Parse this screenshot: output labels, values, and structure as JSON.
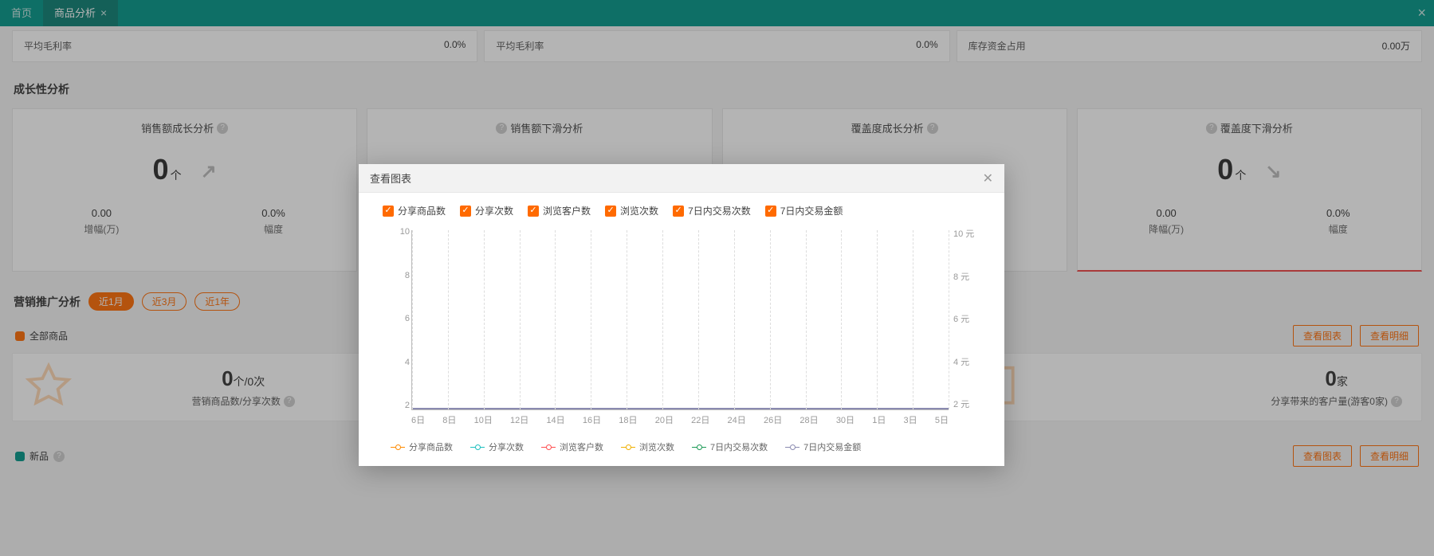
{
  "topbar": {
    "tabs": [
      {
        "label": "首页",
        "active": false
      },
      {
        "label": "商品分析",
        "active": true
      }
    ]
  },
  "top_stats": [
    {
      "label": "平均毛利率",
      "value": "0.0%"
    },
    {
      "label": "平均毛利率",
      "value": "0.0%"
    },
    {
      "label": "库存资金占用",
      "value": "0.00万"
    }
  ],
  "growth_section": {
    "title": "成长性分析",
    "cards": [
      {
        "title": "销售额成长分析",
        "help": true,
        "big": "0",
        "unit": "个",
        "trend_icon": "up",
        "sub": [
          {
            "v": "0.00",
            "l": "增幅(万)"
          },
          {
            "v": "0.0%",
            "l": "幅度"
          }
        ],
        "red": false
      },
      {
        "title": "销售额下滑分析",
        "help_pre": true
      },
      {
        "title": "覆盖度成长分析",
        "help": true
      },
      {
        "title": "覆盖度下滑分析",
        "help_pre": true,
        "big": "0",
        "unit": "个",
        "trend_icon": "down",
        "sub": [
          {
            "v": "0.00",
            "l": "降幅(万)"
          },
          {
            "v": "0.0%",
            "l": "幅度"
          }
        ],
        "red": true
      }
    ]
  },
  "marketing": {
    "title": "营销推广分析",
    "ranges": [
      {
        "label": "近1月",
        "active": true
      },
      {
        "label": "近3月",
        "active": false
      },
      {
        "label": "近1年",
        "active": false
      }
    ],
    "blocks": [
      {
        "dot_color": "orange",
        "label": "全部商品",
        "actions": {
          "chart": "查看图表",
          "detail": "查看明细"
        },
        "left_tile": {
          "big": "0",
          "unit1": "个/0次",
          "label": "营销商品数/分享次数"
        },
        "right_tile": {
          "big": "0",
          "unit": "家",
          "label": "分享带来的客户量(游客0家)"
        }
      },
      {
        "dot_color": "teal",
        "label": "新品",
        "actions": {
          "chart": "查看图表",
          "detail": "查看明细"
        }
      }
    ]
  },
  "modal": {
    "title": "查看图表",
    "checkboxes": [
      "分享商品数",
      "分享次数",
      "浏览客户数",
      "浏览次数",
      "7日内交易次数",
      "7日内交易金额"
    ],
    "chart": {
      "y_left_ticks": [
        "10",
        "8",
        "6",
        "4",
        "2"
      ],
      "y_right_ticks": [
        "10 元",
        "8 元",
        "6 元",
        "4 元",
        "2 元"
      ],
      "x_labels": [
        "6日",
        "8日",
        "10日",
        "12日",
        "14日",
        "16日",
        "18日",
        "20日",
        "22日",
        "24日",
        "26日",
        "28日",
        "30日",
        "1日",
        "3日",
        "5日"
      ],
      "series_colors": {
        "share_goods": "#ff8a00",
        "share_times": "#1bbfbf",
        "view_customers": "#ff4d4f",
        "view_times": "#f0b000",
        "trade_times_7d": "#1a9a55",
        "trade_amount_7d": "#8a8ab0"
      }
    },
    "legend_bottom": [
      {
        "label": "分享商品数",
        "color": "#ff8a00"
      },
      {
        "label": "分享次数",
        "color": "#1bbfbf"
      },
      {
        "label": "浏览客户数",
        "color": "#ff4d4f"
      },
      {
        "label": "浏览次数",
        "color": "#f0b000"
      },
      {
        "label": "7日内交易次数",
        "color": "#1a9a55"
      },
      {
        "label": "7日内交易金额",
        "color": "#8a8ab0"
      }
    ]
  }
}
